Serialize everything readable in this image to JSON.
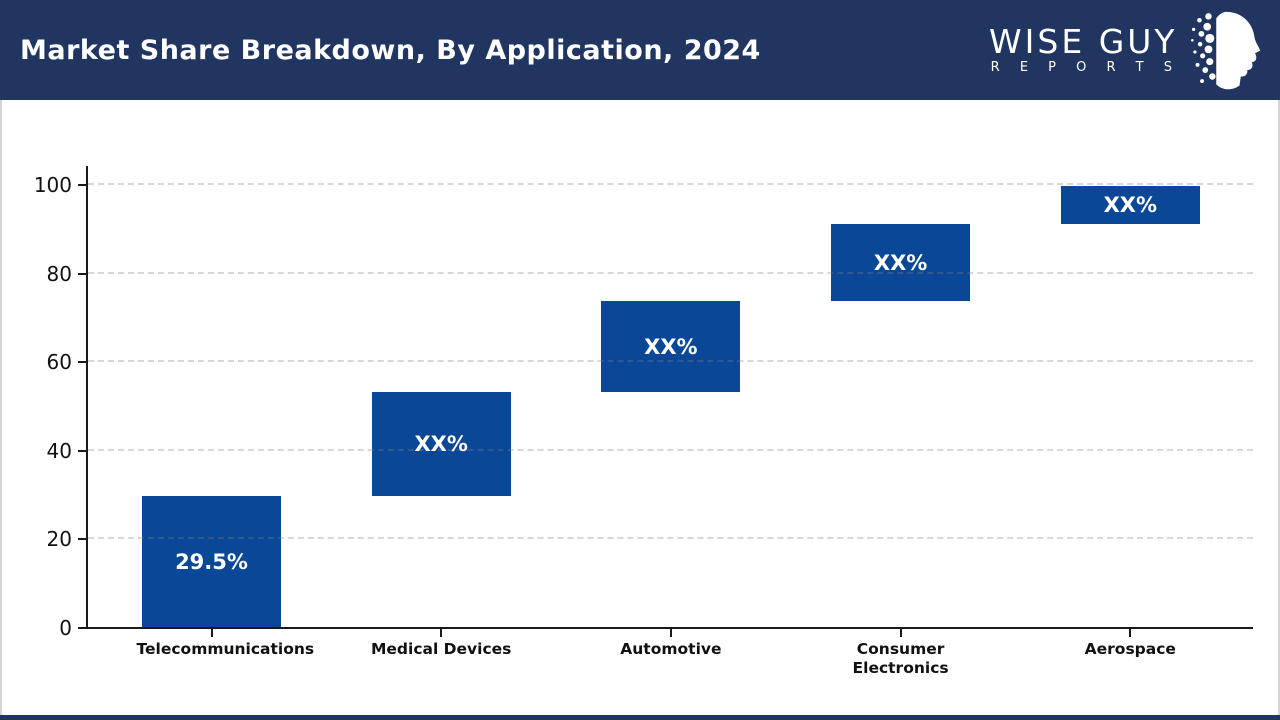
{
  "header": {
    "title": "Market Share Breakdown, By Application, 2024",
    "logo": {
      "primary": "WISE GUY",
      "secondary": "R E P O R T S"
    }
  },
  "watermark": {
    "primary": "WISE GUY",
    "secondary": "REPORTS"
  },
  "chart_data": {
    "type": "bar",
    "variant": "waterfall",
    "title": "Market Share Breakdown, By Application, 2024",
    "categories": [
      "Telecommunications",
      "Medical Devices",
      "Automotive",
      "Consumer Electronics",
      "Aerospace"
    ],
    "segments": [
      {
        "category": "Telecommunications",
        "start": 0,
        "end": 29.5,
        "label": "29.5%"
      },
      {
        "category": "Medical Devices",
        "start": 29.5,
        "end": 53,
        "label": "XX%"
      },
      {
        "category": "Automotive",
        "start": 53,
        "end": 73.5,
        "label": "XX%"
      },
      {
        "category": "Consumer Electronics",
        "start": 73.5,
        "end": 91,
        "label": "XX%"
      },
      {
        "category": "Aerospace",
        "start": 91,
        "end": 99.5,
        "label": "XX%"
      }
    ],
    "yticks": [
      0,
      20,
      40,
      60,
      80,
      100
    ],
    "ylim": [
      0,
      104
    ],
    "xlabel": "",
    "ylabel": "",
    "grid": "horizontal-dashed",
    "legend": "none",
    "bar_color": "#0a4796",
    "bar_label_color": "#ffffff"
  },
  "colors": {
    "header_bg": "#213561",
    "footer_bg": "#213561",
    "bar": "#0a4796",
    "axis": "#1a1a1a",
    "watermark": "#f1f2f5"
  }
}
